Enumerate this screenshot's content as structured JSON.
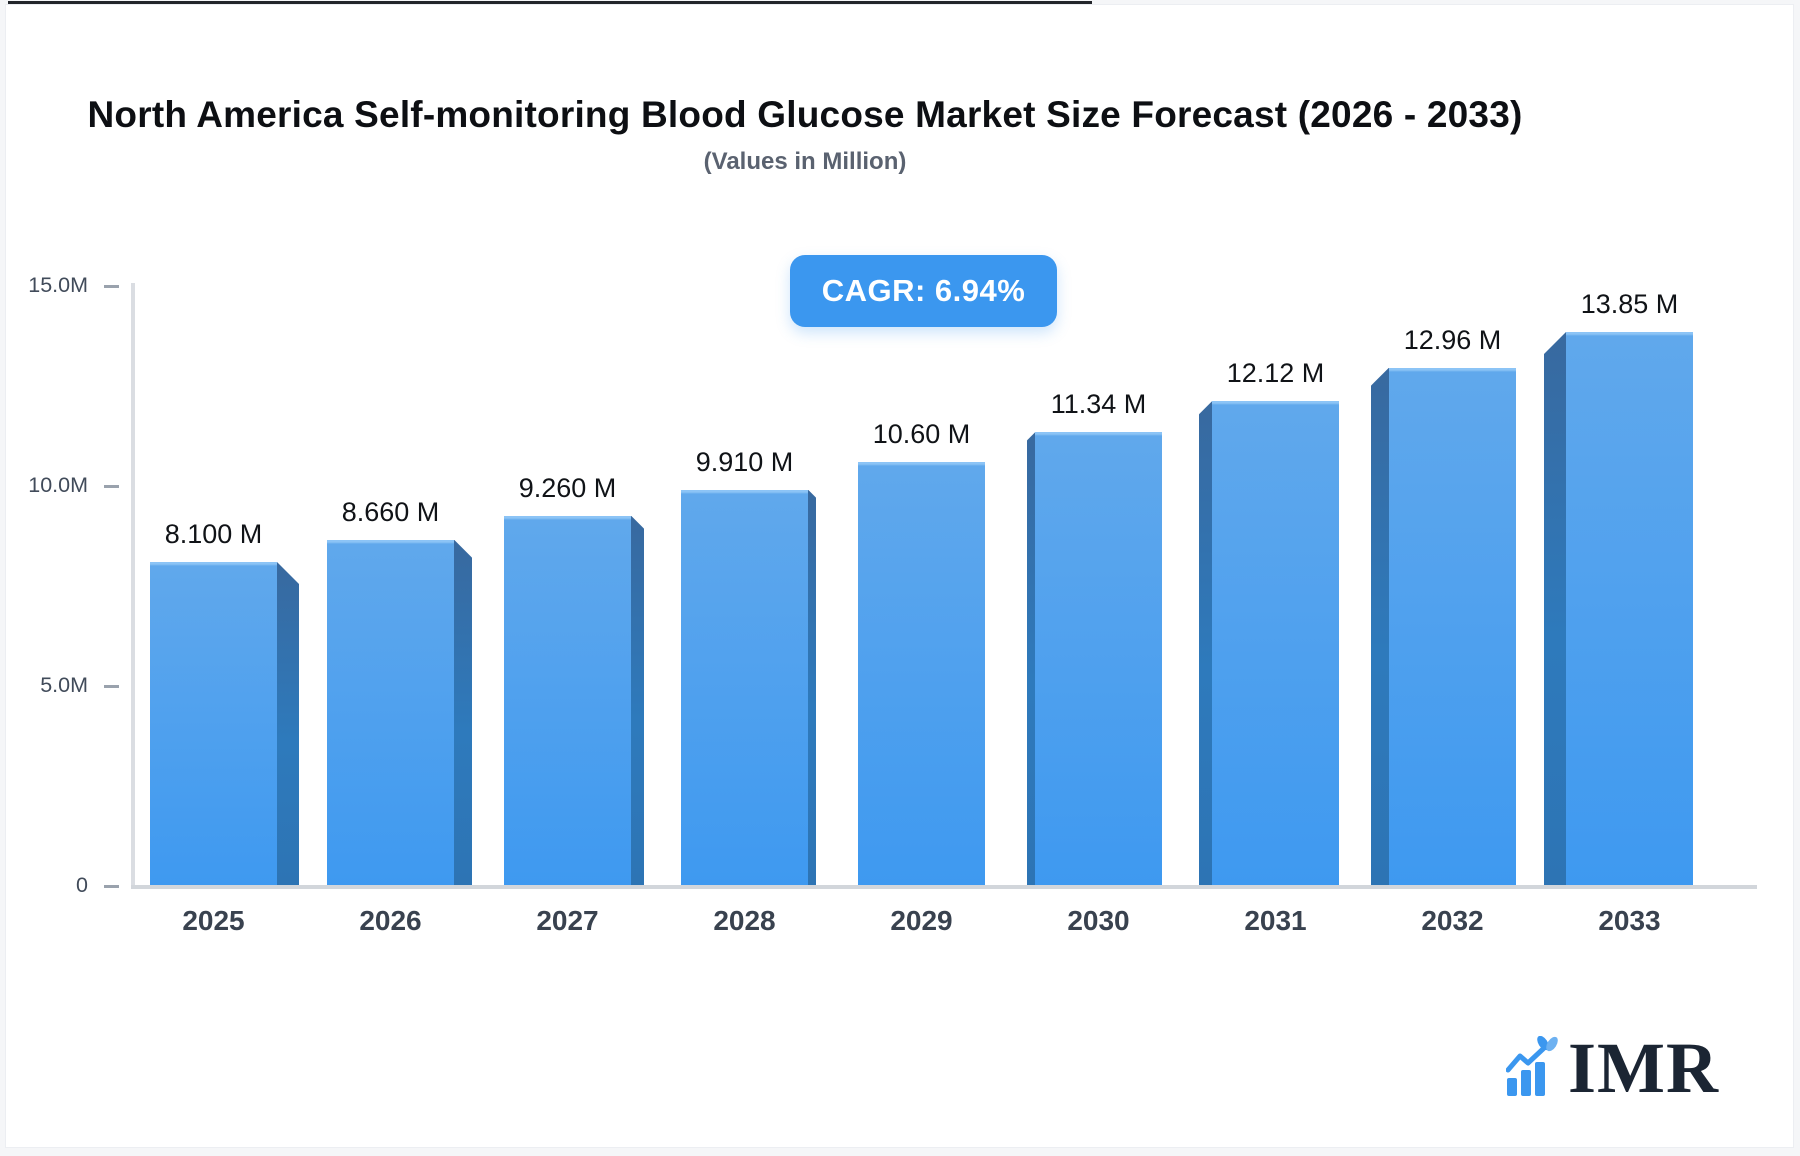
{
  "page": {
    "title": "North America Self-monitoring Blood Glucose Market Size Forecast (2026 - 2033)",
    "subtitle": "(Values in Million)",
    "cagr_badge": "CAGR: 6.94%",
    "background_color": "#f5f6f8",
    "accent_color": "#3b97ef"
  },
  "chart_data": {
    "type": "bar",
    "title": "North America Self-monitoring Blood Glucose Market Size Forecast (2026 - 2033)",
    "subtitle": "(Values in Million)",
    "annotation": "CAGR: 6.94%",
    "categories": [
      "2025",
      "2026",
      "2027",
      "2028",
      "2029",
      "2030",
      "2031",
      "2032",
      "2033"
    ],
    "values": [
      8.1,
      8.66,
      9.26,
      9.91,
      10.6,
      11.34,
      12.12,
      12.96,
      13.85
    ],
    "value_labels": [
      "8.100 M",
      "8.660 M",
      "9.260 M",
      "9.910 M",
      "10.60 M",
      "11.34 M",
      "12.12 M",
      "12.96 M",
      "13.85 M"
    ],
    "xlabel": "",
    "ylabel": "",
    "ylim": [
      0,
      15
    ],
    "y_ticks": [
      {
        "value": 15,
        "label": "15.0M"
      },
      {
        "value": 10,
        "label": "10.0M"
      },
      {
        "value": 5,
        "label": "5.0M"
      },
      {
        "value": 0,
        "label": "0"
      }
    ],
    "unit": "Million",
    "grid": false,
    "legend": "none",
    "bar_style": "3d-perspective",
    "bar_color_top": "#60a8ec",
    "bar_color_bottom": "#3e99f0",
    "bar_side_color": "#2e7abc"
  },
  "logo": {
    "text": "IMR",
    "icon": "bar-chart-growth-leaf-icon"
  }
}
